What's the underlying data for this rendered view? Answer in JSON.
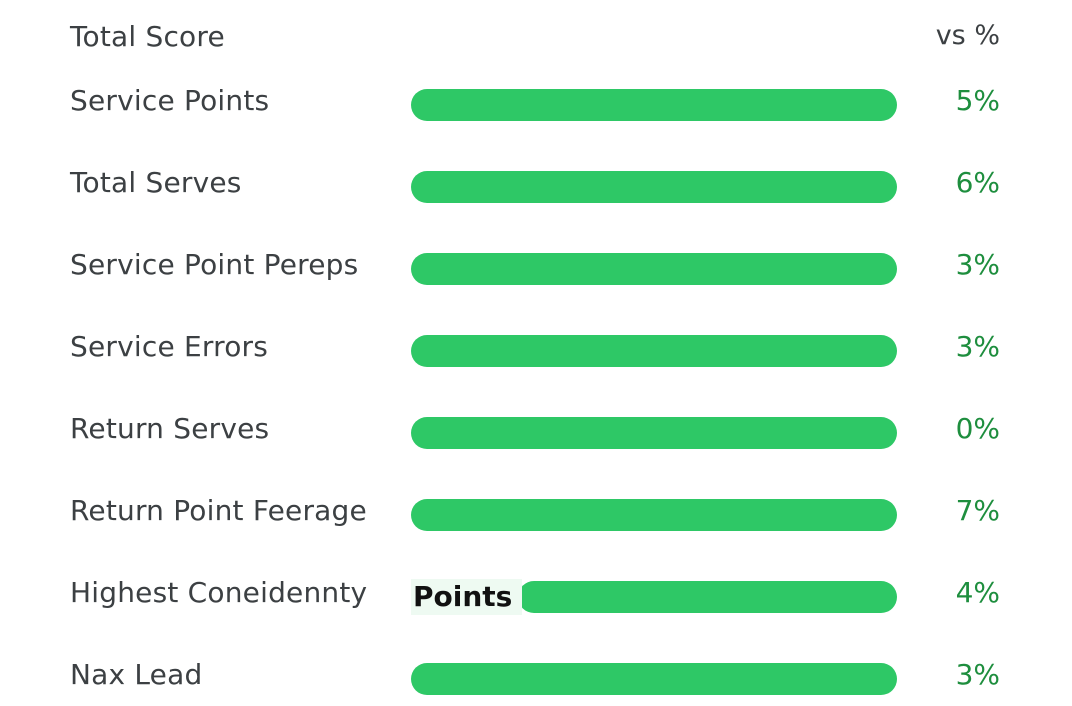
{
  "header": {
    "title": "Total Score",
    "compare_label": "vs %"
  },
  "colors": {
    "bar": "#2ec866",
    "value_text": "#1e8e3e",
    "label_text": "#3c4043"
  },
  "stats": [
    {
      "label": "Service Points",
      "value": "5%"
    },
    {
      "label": "Total Serves",
      "value": "6%"
    },
    {
      "label": "Service Point Pereps",
      "value": "3%"
    },
    {
      "label": "Service Errors",
      "value": "3%"
    },
    {
      "label": "Return Serves",
      "value": "0%"
    },
    {
      "label": "Return Point Feerage",
      "value": "7%"
    },
    {
      "label": "Highest Coneidennty",
      "value": "4%",
      "bar_tag": "Points",
      "bar_fill_fraction": 0.78
    },
    {
      "label": "Nax Lead",
      "value": "3%"
    }
  ]
}
